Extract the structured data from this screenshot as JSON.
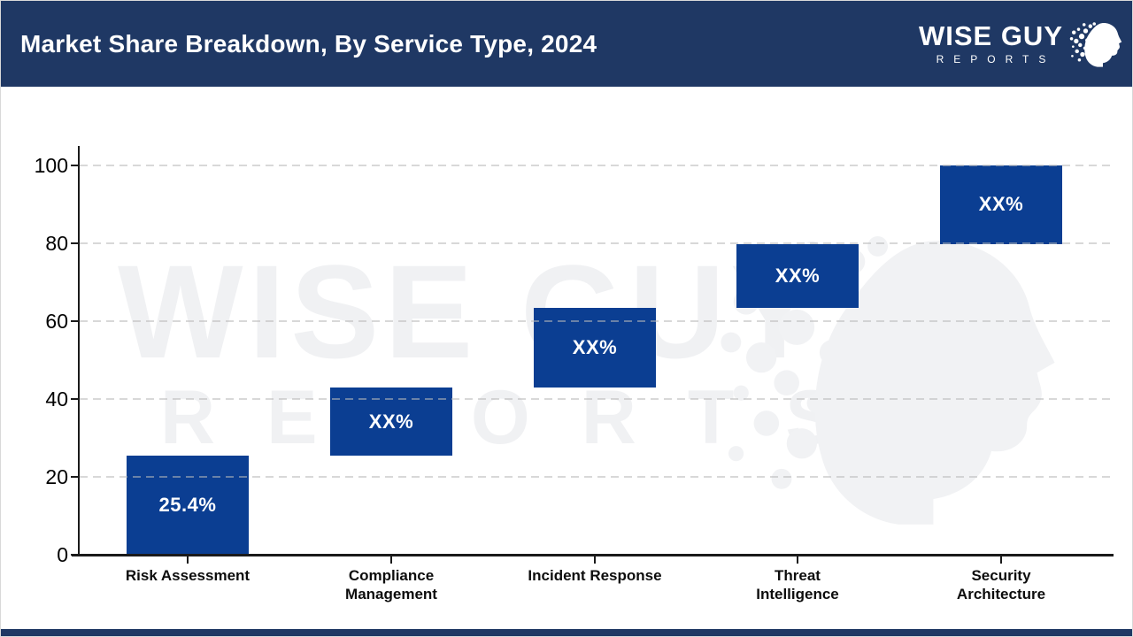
{
  "header": {
    "title": "Market Share Breakdown, By Service Type, 2024",
    "bg_color": "#1f3864",
    "logo": {
      "line1": "WISE GUY",
      "line2": "REPORTS"
    }
  },
  "watermark": {
    "line1": "WISE GUY",
    "line2": "REPORTS"
  },
  "footer": {
    "bg_color": "#1f3864"
  },
  "chart_data": {
    "type": "bar",
    "subtype": "waterfall",
    "title": "Market Share Breakdown, By Service Type, 2024",
    "categories": [
      "Risk Assessment",
      "Compliance Management",
      "Incident Response",
      "Threat Intelligence",
      "Security Architecture"
    ],
    "segments": [
      {
        "category": "Risk Assessment",
        "slug": "risk-assessment",
        "lines": [
          "Risk Assessment"
        ],
        "start": 0,
        "end": 25.4,
        "label": "25.4%"
      },
      {
        "category": "Compliance Management",
        "slug": "compliance-management",
        "lines": [
          "Compliance",
          "Management"
        ],
        "start": 25.4,
        "end": 43.0,
        "label": "XX%"
      },
      {
        "category": "Incident Response",
        "slug": "incident-response",
        "lines": [
          "Incident Response"
        ],
        "start": 43.0,
        "end": 63.5,
        "label": "XX%"
      },
      {
        "category": "Threat Intelligence",
        "slug": "threat-intelligence",
        "lines": [
          "Threat",
          "Intelligence"
        ],
        "start": 63.5,
        "end": 79.8,
        "label": "XX%"
      },
      {
        "category": "Security Architecture",
        "slug": "security-architecture",
        "lines": [
          "Security",
          "Architecture"
        ],
        "start": 79.8,
        "end": 100.0,
        "label": "XX%"
      }
    ],
    "bar_color": "#0b3e92",
    "label_color": "#ffffff",
    "xlabel": "",
    "ylabel": "",
    "y_axis": {
      "min": 0,
      "max": 100,
      "ticks": [
        0,
        20,
        40,
        60,
        80,
        100
      ]
    },
    "grid": "horizontal dashed",
    "legend": "none"
  }
}
